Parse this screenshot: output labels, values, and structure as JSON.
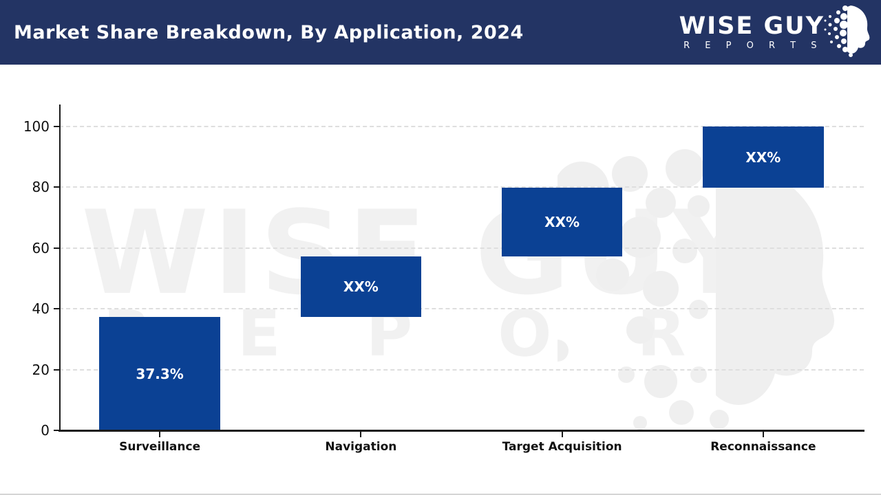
{
  "header": {
    "title": "Market Share Breakdown, By Application, 2024",
    "logo": {
      "line1": "WISE GUY",
      "line2": "R E P O R T S"
    }
  },
  "watermark": {
    "line1": "WISE GUY",
    "line2": "R E P O R T S"
  },
  "colors": {
    "header_bg": "#233464",
    "bar_blue": "#0b4194",
    "grid_gray": "#dedede",
    "axis_black": "#1a1a1a",
    "watermark_gray": "#f1f1f1"
  },
  "chart_data": {
    "type": "bar",
    "subtype": "waterfall",
    "title": "Market Share Breakdown, By Application, 2024",
    "xlabel": "",
    "ylabel": "",
    "categories": [
      "Surveillance",
      "Navigation",
      "Target Acquisition",
      "Reconnaissance"
    ],
    "bars": [
      {
        "category": "Surveillance",
        "start": 0,
        "end": 37.3,
        "label": "37.3%"
      },
      {
        "category": "Navigation",
        "start": 37.3,
        "end": 57.3,
        "label": "XX%"
      },
      {
        "category": "Target Acquisition",
        "start": 57.3,
        "end": 79.8,
        "label": "XX%"
      },
      {
        "category": "Reconnaissance",
        "start": 79.8,
        "end": 100,
        "label": "XX%"
      }
    ],
    "yticks": [
      0,
      20,
      40,
      60,
      80,
      100
    ],
    "ylim": [
      0,
      107
    ],
    "grid": "dashed-horizontal",
    "legend": "none"
  }
}
